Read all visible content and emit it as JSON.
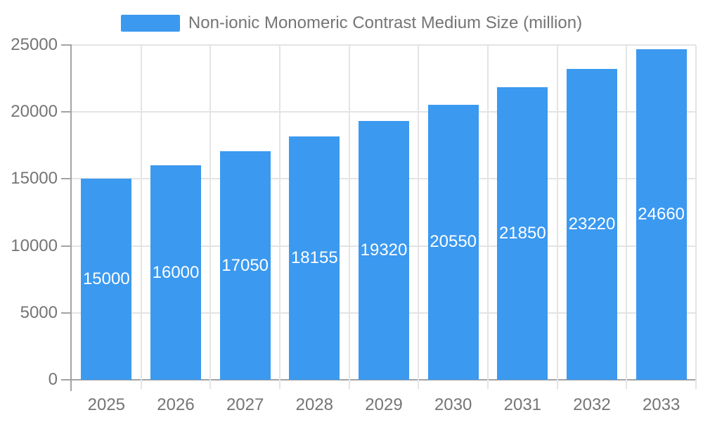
{
  "legend": {
    "label": "Non-ionic Monomeric Contrast Medium Size (million)"
  },
  "colors": {
    "bar": "#3b99f0",
    "grid": "#e4e4e4",
    "axis": "#a3a3a3",
    "tick_text": "#757575",
    "legend_text": "#757575",
    "value_label_text": "#ffffff",
    "background": "#ffffff"
  },
  "chart_data": {
    "type": "bar",
    "title": "Non-ionic Monomeric Contrast Medium Size (million)",
    "series": [
      {
        "name": "Non-ionic Monomeric Contrast Medium Size (million)",
        "values": [
          15000,
          16000,
          17050,
          18155,
          19320,
          20550,
          21850,
          23220,
          24660
        ]
      }
    ],
    "categories": [
      "2025",
      "2026",
      "2027",
      "2028",
      "2029",
      "2030",
      "2031",
      "2032",
      "2033"
    ],
    "xlabel": "",
    "ylabel": "",
    "ylim": [
      0,
      25000
    ],
    "yticks": [
      0,
      5000,
      10000,
      15000,
      20000,
      25000
    ],
    "grid": true,
    "legend_position": "top",
    "value_labels_shown": true,
    "value_labels_position": "inside-center"
  }
}
